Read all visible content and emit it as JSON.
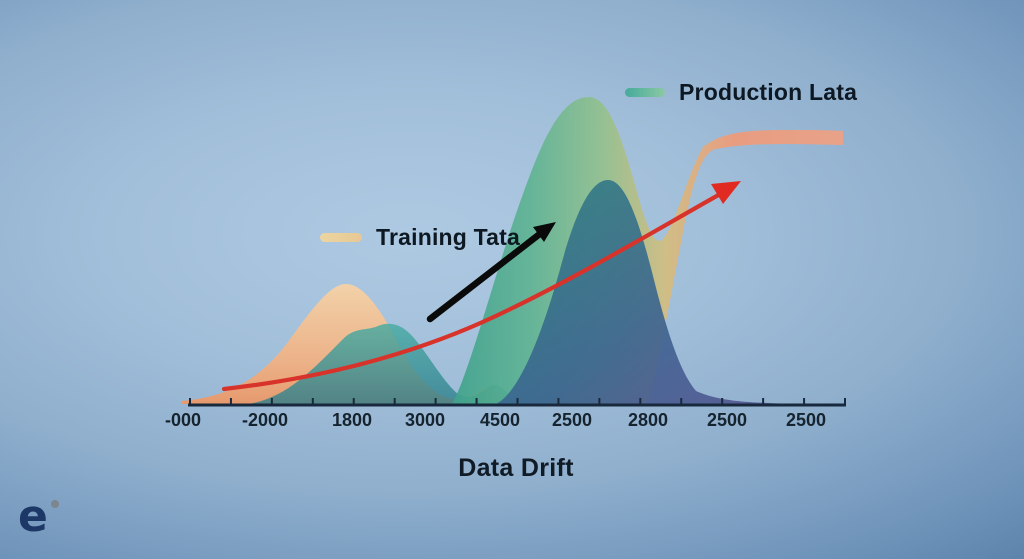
{
  "title": "Data Drift",
  "legend": {
    "training": {
      "label": "Training Tata",
      "swatch_color": "#ecd5a2"
    },
    "production": {
      "label": "Production Lata",
      "swatch_color_start": "#45aa9b",
      "swatch_color_end": "#8cc8a4"
    }
  },
  "axis": {
    "labels": [
      "-000",
      "-2000",
      "1800",
      "3000",
      "4500",
      "2500",
      "2800",
      "2500",
      "2500"
    ]
  },
  "logo": {
    "letter": "e"
  },
  "colors": {
    "background_center": "#aec9e2",
    "background_edge": "#1f3a56",
    "axis_line": "#18293d",
    "trend_arrow_red": "#d8332a",
    "annotation_arrow_black": "#0a0a0a",
    "training_fill_top": "#f5cda3",
    "training_fill_bottom": "#eb9a6a",
    "training_overlay_teal": "#3aa49d",
    "production_fill_green": "#3fa28b",
    "production_fill_tan": "#d4bd7f",
    "production_fill_salmon": "#f08a76",
    "production_inner_teal": "#2f8082",
    "production_inner_purple": "#5a5090"
  },
  "chart_data": {
    "type": "area",
    "title": "Data Drift",
    "xlabel": "Data Drift",
    "ylabel": "",
    "grid": false,
    "legend_position": "floating",
    "x_tick_labels": [
      "-000",
      "-2000",
      "1800",
      "3000",
      "4500",
      "2500",
      "2800",
      "2500",
      "2500"
    ],
    "ylim": [
      0,
      1
    ],
    "series": [
      {
        "name": "Training Tata",
        "style": "density-area",
        "color": "#f2b585",
        "peak_at_tick": "1800",
        "values": [
          0.01,
          0.12,
          0.39,
          0.22,
          0.05,
          0,
          0,
          0,
          0
        ]
      },
      {
        "name": "Training Tata (teal overlap)",
        "style": "density-area",
        "color": "#3aa49d",
        "peak_at_tick": "3000",
        "values": [
          0,
          0.05,
          0.22,
          0.27,
          0.06,
          0,
          0,
          0,
          0
        ]
      },
      {
        "name": "Production Lata",
        "style": "density-area-with-plateau",
        "color": "#3fa28b",
        "peak_at_tick": "2500",
        "values": [
          0,
          0,
          0,
          0.02,
          0.3,
          0.97,
          0.55,
          0.85,
          0.89
        ]
      },
      {
        "name": "Production Lata (inner dark mode)",
        "style": "density-area",
        "color": "#2f8082",
        "peak_at_tick": "2500",
        "values": [
          0,
          0,
          0,
          0,
          0.15,
          0.68,
          0.48,
          0.05,
          0
        ]
      }
    ],
    "annotations": [
      {
        "type": "curved-arrow",
        "name": "drift-trend-arrow",
        "color": "#d8332a",
        "from_tick": "-2000",
        "to_tick": "2800",
        "direction": "up-right"
      },
      {
        "type": "straight-arrow",
        "name": "drift-direction-arrow",
        "color": "#0a0a0a",
        "direction": "up-right"
      }
    ]
  }
}
